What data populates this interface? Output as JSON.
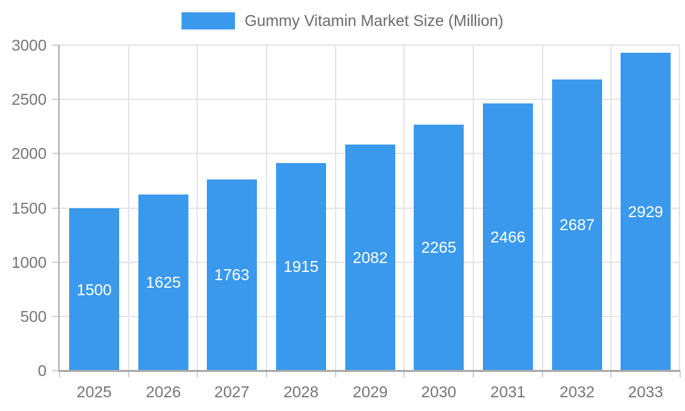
{
  "chart_data": {
    "type": "bar",
    "title": "",
    "legend": {
      "label": "Gummy Vitamin Market Size (Million)",
      "position": "top"
    },
    "categories": [
      "2025",
      "2026",
      "2027",
      "2028",
      "2029",
      "2030",
      "2031",
      "2032",
      "2033"
    ],
    "series": [
      {
        "name": "Gummy Vitamin Market Size (Million)",
        "values": [
          1500,
          1625,
          1763,
          1915,
          2082,
          2265,
          2466,
          2687,
          2929
        ]
      }
    ],
    "xlabel": "",
    "ylabel": "",
    "ylim": [
      0,
      3000
    ],
    "yticks": [
      0,
      500,
      1000,
      1500,
      2000,
      2500,
      3000
    ],
    "grid": "both",
    "data_labels": "inside-center",
    "colors": {
      "bar": "#3A99EC",
      "data_label": "#FFFFFF",
      "axis_text": "#757575",
      "legend_text": "#6B6B6B",
      "axis_line": "#ABABAB",
      "grid_line": "#E5E5E5",
      "tick": "#D2D2D2",
      "background": "#FFFFFF"
    }
  }
}
